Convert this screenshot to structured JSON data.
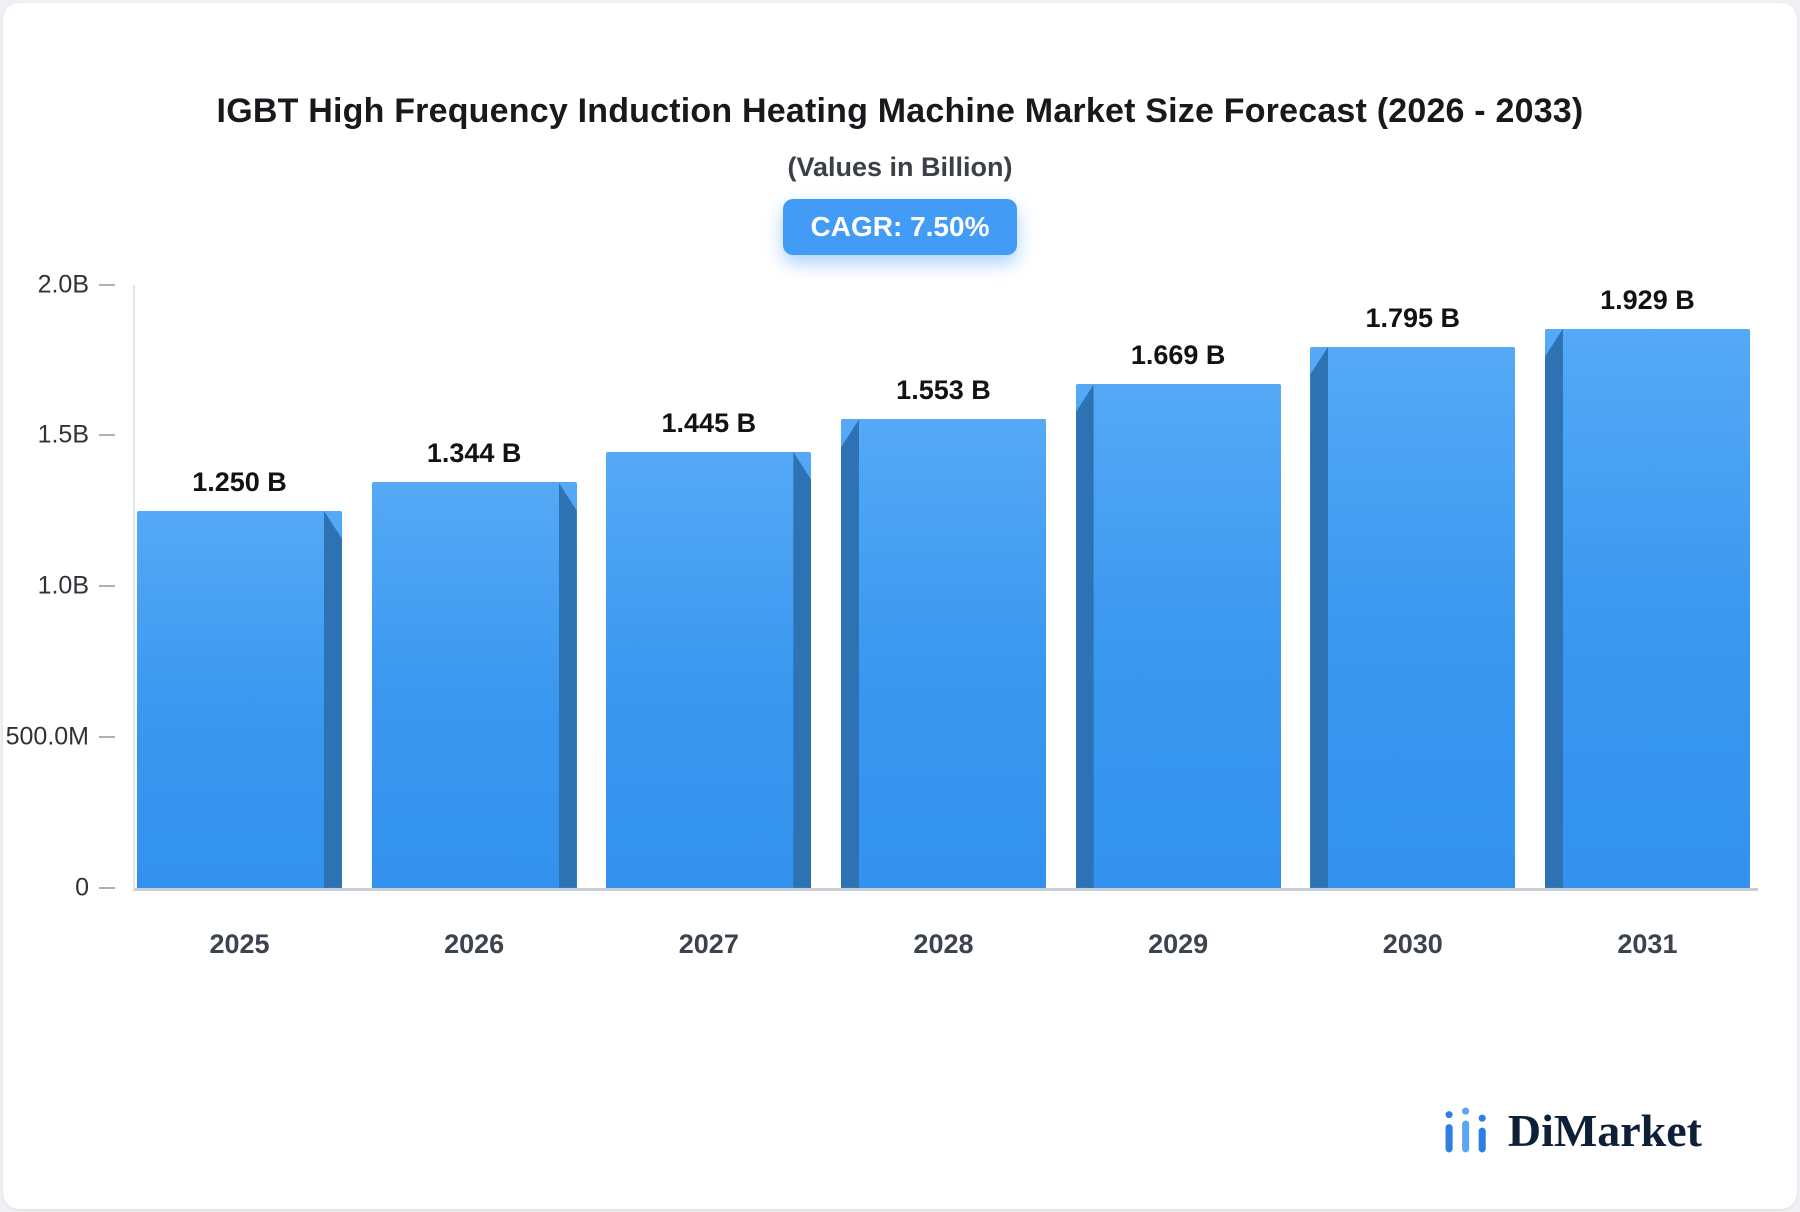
{
  "header": {
    "title": "IGBT High Frequency Induction Heating Machine Market Size Forecast (2026 - 2033)",
    "subtitle": "(Values in Billion)",
    "badge": "CAGR: 7.50%"
  },
  "chart_data": {
    "type": "bar",
    "title": "IGBT High Frequency Induction Heating Machine Market Size Forecast (2026 - 2033)",
    "subtitle": "(Values in Billion)",
    "categories": [
      "2025",
      "2026",
      "2027",
      "2028",
      "2029",
      "2030",
      "2031"
    ],
    "values": [
      1.25,
      1.344,
      1.445,
      1.553,
      1.669,
      1.795,
      1.929
    ],
    "value_labels": [
      "1.250 B",
      "1.344 B",
      "1.445 B",
      "1.553 B",
      "1.669 B",
      "1.795 B",
      "1.929 B"
    ],
    "ylim": [
      0,
      2.0
    ],
    "yticks": [
      {
        "label": "2.0B",
        "value": 2.0
      },
      {
        "label": "1.5B",
        "value": 1.5
      },
      {
        "label": "1.0B",
        "value": 1.0
      },
      {
        "label": "500.0M",
        "value": 0.5
      },
      {
        "label": "0",
        "value": 0
      }
    ],
    "grid": false,
    "legend": "none",
    "bar_color": "#3d9cf2",
    "bar_side_color": "#2d72b2"
  },
  "branding": {
    "logo_text": "DiMarket",
    "logo_icon": "bar-chart-icon",
    "logo_color": "#0d2038",
    "icon_color": "#2e7fe0"
  }
}
